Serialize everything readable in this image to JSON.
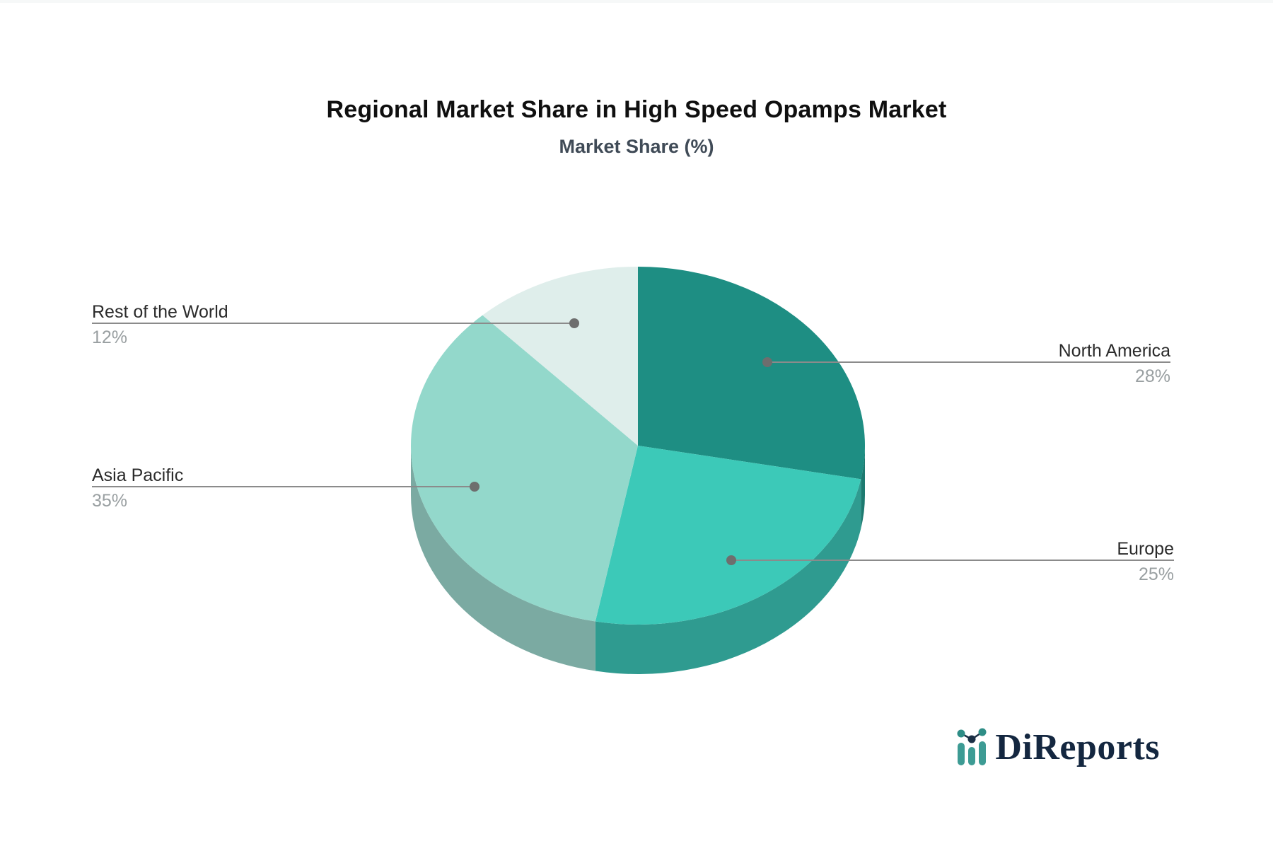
{
  "title": "Regional Market Share in High Speed Opamps Market",
  "subtitle": "Market Share (%)",
  "chart_data": {
    "type": "pie",
    "title": "Regional Market Share in High Speed Opamps Market",
    "subtitle": "Market Share (%)",
    "unit": "%",
    "style": "3d-pie",
    "start_angle_deg": 0,
    "direction": "clockwise",
    "legend_position": "callout-labels",
    "segments": [
      {
        "id": "north-america",
        "label": "North America",
        "value": 28,
        "display": "28%",
        "color": "#1e8e83",
        "side_color": "#1d7a70"
      },
      {
        "id": "europe",
        "label": "Europe",
        "value": 25,
        "display": "25%",
        "color": "#3cc9b8",
        "side_color": "#2f9b90"
      },
      {
        "id": "asia-pacific",
        "label": "Asia Pacific",
        "value": 35,
        "display": "35%",
        "color": "#93d8cb",
        "side_color": "#7baaa2"
      },
      {
        "id": "rest-of-world",
        "label": "Rest of the World",
        "value": 12,
        "display": "12%",
        "color": "#dfeeeb",
        "side_color": "#cfe4e0"
      }
    ]
  },
  "colors": {
    "background": "#ffffff",
    "title_text": "#0f0f0f",
    "subtitle_text": "#404b57",
    "label_name_text": "#2b2b2b",
    "label_value_text": "#999fa1",
    "leader_line": "#8b8b8b",
    "leader_dot": "#6e6e6e",
    "logo_text": "#142740",
    "logo_teal": "#3d9b94"
  },
  "logo": {
    "text": "DiReports",
    "icon": "bar-line-chart-icon"
  }
}
